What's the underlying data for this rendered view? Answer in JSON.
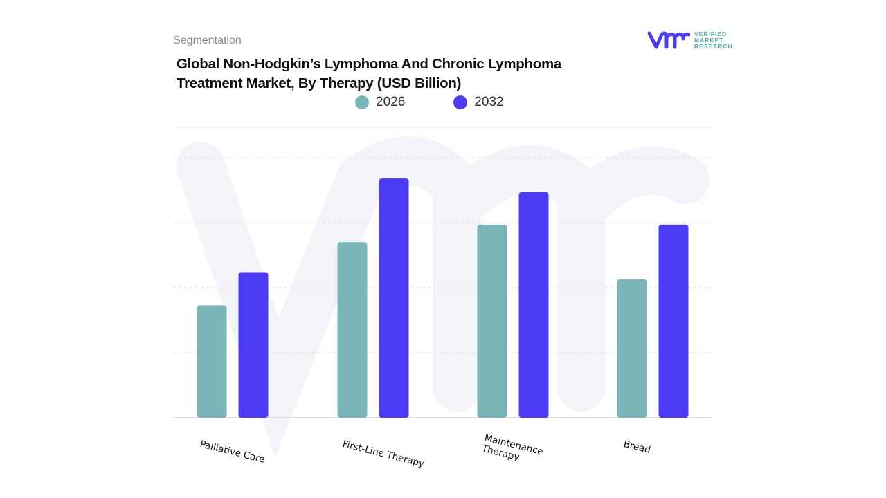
{
  "header": {
    "segment_label": "Segmentation"
  },
  "logo": {
    "line1": "VERIFIED",
    "line2": "MARKET",
    "line3": "RESEARCH"
  },
  "colors": {
    "2026": "#7ab5b8",
    "2032": "#4b3bf5"
  },
  "chart_data": {
    "type": "bar",
    "title": "Global Non-Hodgkin’s Lymphoma And Chronic Lymphoma Treatment Market, By Therapy (USD Billion)",
    "categories": [
      "Palliative Care",
      "First-Line Therapy",
      "Maintenance Therapy",
      "Bread"
    ],
    "series": [
      {
        "name": "2026",
        "values": [
          1.73,
          2.7,
          2.97,
          2.13
        ]
      },
      {
        "name": "2032",
        "values": [
          2.24,
          3.68,
          3.47,
          2.97
        ]
      }
    ],
    "xlabel": "",
    "ylabel": "",
    "ylim": [
      0,
      4
    ],
    "grid": true,
    "legend": "top-center"
  }
}
